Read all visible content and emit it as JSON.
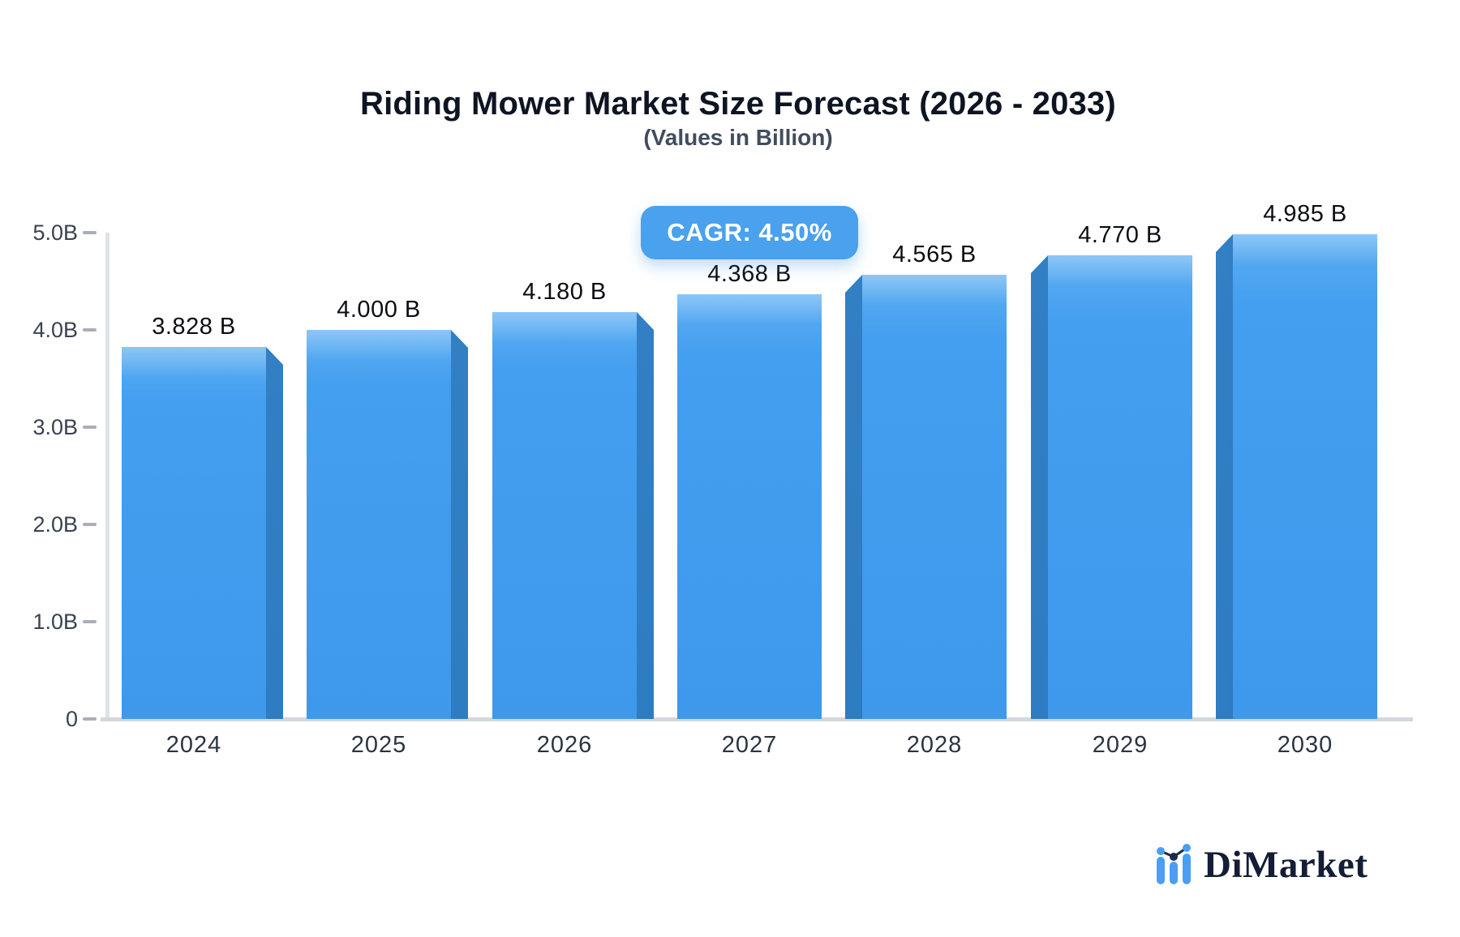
{
  "header": {
    "title": "Riding Mower Market Size Forecast (2026 - 2033)",
    "subtitle": "(Values in Billion)",
    "cagr_badge": "CAGR: 4.50%"
  },
  "chart_data": {
    "type": "bar",
    "title": "Riding Mower Market Size Forecast (2026 - 2033)",
    "subtitle": "(Values in Billion)",
    "categories": [
      "2024",
      "2025",
      "2026",
      "2027",
      "2028",
      "2029",
      "2030"
    ],
    "values": [
      3.828,
      4.0,
      4.18,
      4.368,
      4.565,
      4.77,
      4.985
    ],
    "value_labels": [
      "3.828 B",
      "4.000 B",
      "4.180 B",
      "4.368 B",
      "4.565 B",
      "4.770 B",
      "4.985 B"
    ],
    "cagr_label": "CAGR: 4.50%",
    "xlabel": "",
    "ylabel": "",
    "ylim": [
      0,
      5
    ],
    "ytick_labels": [
      "0",
      "1.0B",
      "2.0B",
      "3.0B",
      "4.0B",
      "5.0B"
    ],
    "grid": false,
    "legend": false,
    "colors": {
      "bar_face_top": "#5caef2",
      "bar_face": "#459ff0",
      "bar_face_bottom": "#3e98ec",
      "bar_side": "#2e7cc1",
      "badge_blue": "#4aa1ed",
      "axis_line": "#dfe2e8",
      "baseline": "#d3d7de",
      "tick_dash": "#a9aeb8",
      "tick_text": "#3a4250",
      "year_text": "#2c3442",
      "value_text": "#0a0d12"
    }
  },
  "footer": {
    "brand": "DiMarket"
  }
}
